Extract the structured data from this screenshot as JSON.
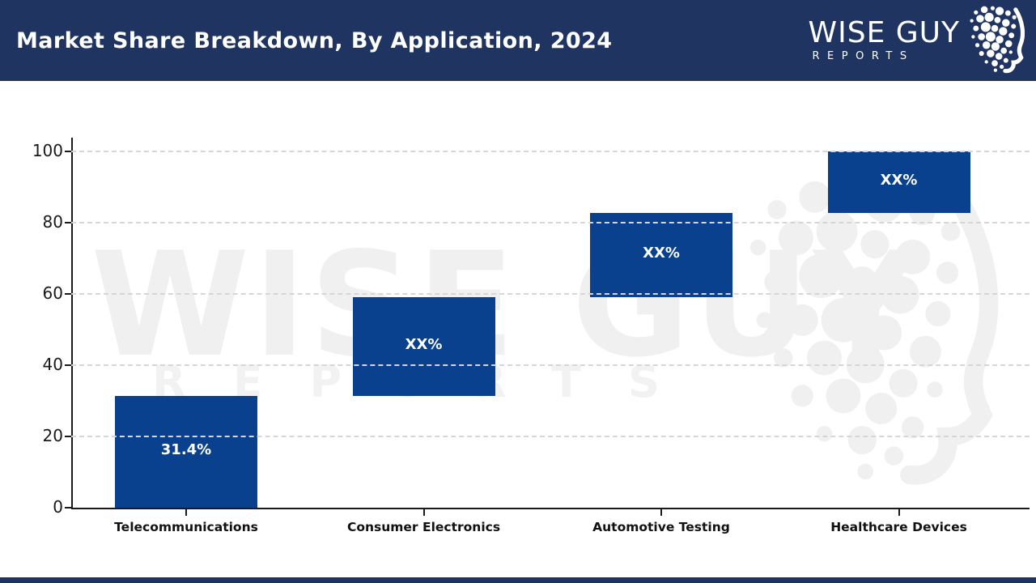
{
  "header": {
    "title": "Market Share Breakdown, By Application, 2024",
    "bg_color": "#1f3460",
    "logo": {
      "line1": "WISE GUY",
      "line2": "REPORTS",
      "head_icon": "dotted-head-profile"
    }
  },
  "watermark": {
    "line1": "WISE GUY",
    "line2": "REPORTS",
    "color": "#f0f0f0"
  },
  "footer": {
    "bg_color": "#1f3460"
  },
  "chart_data": {
    "type": "bar",
    "subtype": "waterfall",
    "title": "Market Share Breakdown, By Application, 2024",
    "xlabel": "",
    "ylabel": "",
    "categories": [
      "Telecommunications",
      "Consumer Electronics",
      "Automotive Testing",
      "Healthcare Devices"
    ],
    "bars": [
      {
        "category": "Telecommunications",
        "start": 0,
        "end": 31.4,
        "label": "31.4%"
      },
      {
        "category": "Consumer Electronics",
        "start": 31.4,
        "end": 59.0,
        "label": "XX%"
      },
      {
        "category": "Automotive Testing",
        "start": 59.0,
        "end": 82.7,
        "label": "XX%"
      },
      {
        "category": "Healthcare Devices",
        "start": 82.7,
        "end": 100,
        "label": "XX%"
      }
    ],
    "ylim": [
      0,
      100
    ],
    "yticks": [
      0,
      20,
      40,
      60,
      80,
      100
    ],
    "grid": "horizontal-dashed-above-bars",
    "bar_color": "#09418e",
    "bar_label_color": "#ffffff",
    "legend": "none"
  }
}
